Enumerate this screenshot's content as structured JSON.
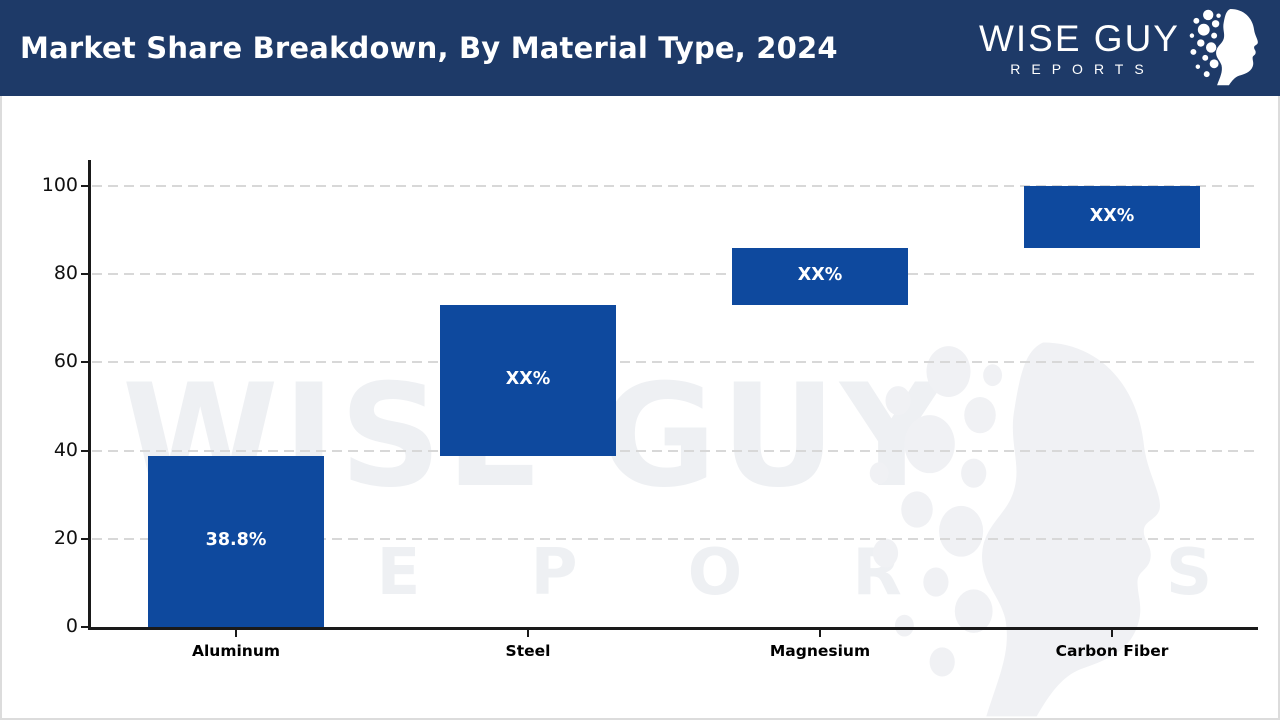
{
  "header": {
    "title": "Market Share Breakdown, By Material Type, 2024",
    "bg_color": "#1e3a68",
    "logo": {
      "line1": "WISE GUY",
      "line2": "REPORTS"
    }
  },
  "watermark": {
    "line1": "WISE GUY",
    "line2": "R E P O R T S"
  },
  "chart_data": {
    "type": "bar",
    "subtype": "waterfall",
    "title": "Market Share Breakdown, By Material Type, 2024",
    "categories": [
      "Aluminum",
      "Steel",
      "Magnesium",
      "Carbon Fiber"
    ],
    "segments": [
      [
        0,
        38.8
      ],
      [
        38.8,
        73
      ],
      [
        73,
        86
      ],
      [
        86,
        100
      ]
    ],
    "bar_labels": [
      "38.8%",
      "XX%",
      "XX%",
      "XX%"
    ],
    "bar_color": "#0e499e",
    "xlabel": "",
    "ylabel": "",
    "ylim": [
      0,
      100
    ],
    "yticks": [
      0,
      20,
      40,
      60,
      80,
      100
    ],
    "grid": "horizontal dashed",
    "gridline_color": "#d8d8d8",
    "legend": "none"
  }
}
